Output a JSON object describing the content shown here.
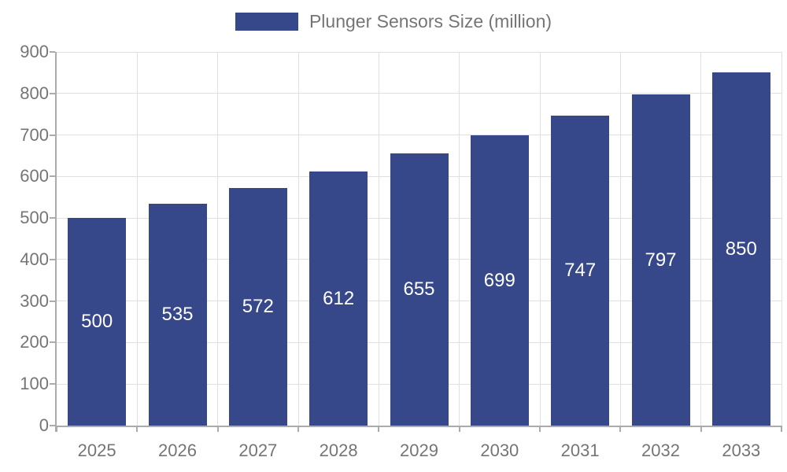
{
  "chart_data": {
    "type": "bar",
    "title": "Plunger Sensors Size (million)",
    "legend_label": "Plunger Sensors Size (million)",
    "legend_position": "top-center",
    "categories": [
      "2025",
      "2026",
      "2027",
      "2028",
      "2029",
      "2030",
      "2031",
      "2032",
      "2033"
    ],
    "series": [
      {
        "name": "Plunger Sensors Size (million)",
        "values": [
          500,
          535,
          572,
          612,
          655,
          699,
          747,
          797,
          850
        ]
      }
    ],
    "bar_labels": [
      "500",
      "535",
      "572",
      "612",
      "655",
      "699",
      "747",
      "797",
      "850"
    ],
    "xlabel": "",
    "ylabel": "",
    "ylim": [
      0,
      900
    ],
    "yticks": [
      0,
      100,
      200,
      300,
      400,
      500,
      600,
      700,
      800,
      900
    ],
    "grid": true,
    "colors": {
      "bar": "#36478A",
      "grid": "#e0e0e0",
      "axis": "#ababab",
      "tick_text": "#757575",
      "legend_text": "#757575",
      "bar_label_text": "#ffffff",
      "background": "#ffffff"
    }
  }
}
